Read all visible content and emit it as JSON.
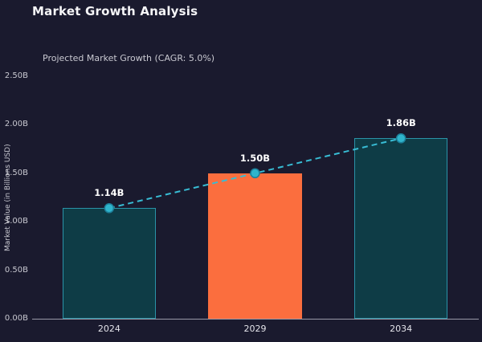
{
  "header": {
    "title": "Market Growth Analysis"
  },
  "chart_data": {
    "type": "bar",
    "title": "Market Growth Analysis",
    "subtitle": "Projected Market Growth (CAGR: 5.0%)",
    "categories": [
      "2024",
      "2029",
      "2034"
    ],
    "values": [
      1.14,
      1.5,
      1.86
    ],
    "data_labels": [
      "1.14B",
      "1.50B",
      "1.86B"
    ],
    "trend_line": {
      "type": "line",
      "style": "dashed",
      "values": [
        1.14,
        1.5,
        1.86
      ]
    },
    "xlabel": "",
    "ylabel": "Market Value (in Billions USD)",
    "ylim": [
      0,
      2.5
    ],
    "ytick_labels": [
      "0.00B",
      "0.50B",
      "1.00B",
      "1.50B",
      "2.00B",
      "2.50B"
    ],
    "grid": false,
    "legend": "none",
    "colors": {
      "background": "#1a1a2e",
      "bar_fill": [
        "#0e3c46",
        "#fb6e3e",
        "#0e3c46"
      ],
      "bar_border": [
        "#2a93a8",
        "#fb6e3e",
        "#2a93a8"
      ],
      "trend_line": "#38bcd4",
      "marker_fill": "#2fb4cc",
      "marker_stroke": "#1d7f99",
      "title_text": "#f5f5f7",
      "muted_text": "#c9c9d1",
      "value_label_text": "#ffffff",
      "axis_line": "#9a9aa8"
    }
  }
}
